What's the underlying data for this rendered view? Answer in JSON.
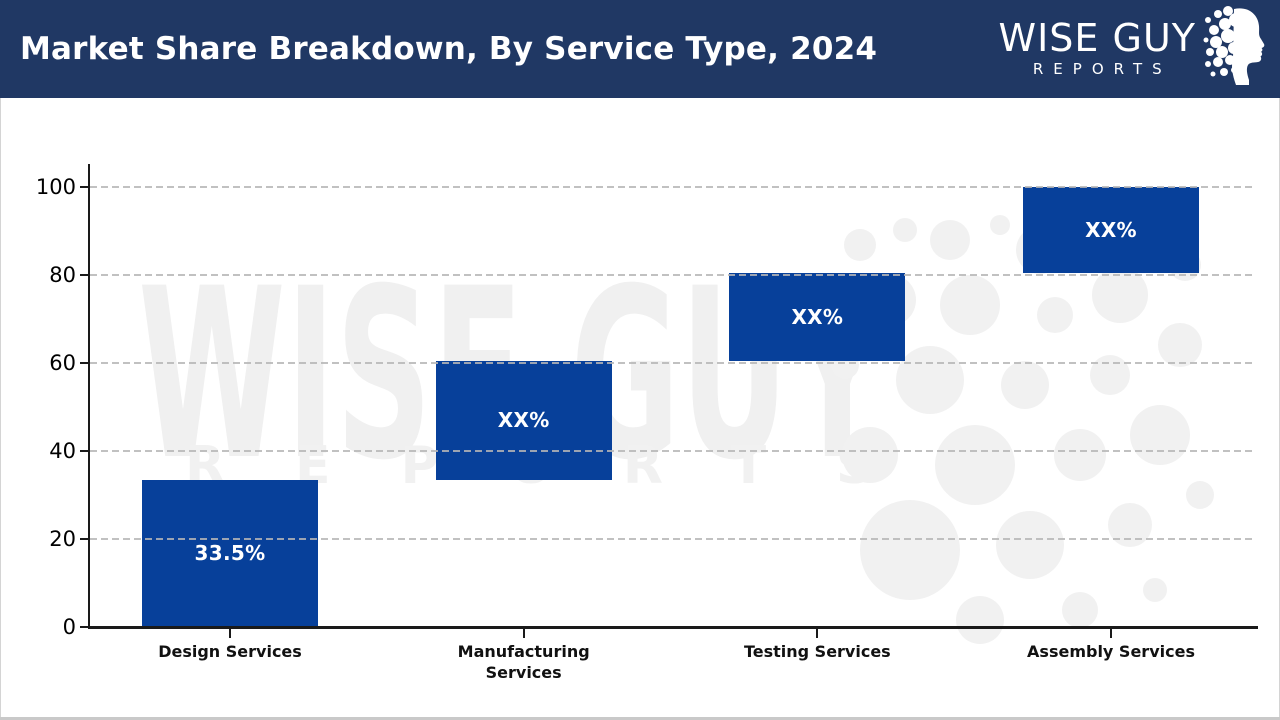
{
  "header": {
    "title": "Market Share Breakdown, By Service Type, 2024",
    "logo": {
      "line1": "WISE GUY",
      "line2": "REPORTS"
    }
  },
  "watermark": {
    "line1": "WISE GUY",
    "line2": "REPORTS"
  },
  "colors": {
    "header_bg": "#203864",
    "bar": "#07409a",
    "gridline": "#bcbcbc",
    "axis": "#1a1a1a",
    "watermark": "#f0f0f0",
    "title_text": "#ffffff",
    "bar_label_text": "#ffffff"
  },
  "chart_data": {
    "type": "bar",
    "subtype": "waterfall",
    "title": "Market Share Breakdown, By Service Type, 2024",
    "categories": [
      "Design Services",
      "Manufacturing Services",
      "Testing Services",
      "Assembly Services"
    ],
    "segments": [
      {
        "category": "Design Services",
        "start": 0,
        "end": 33.5,
        "label": "33.5%"
      },
      {
        "category": "Manufacturing Services",
        "start": 33.5,
        "end": 60.5,
        "label": "XX%"
      },
      {
        "category": "Testing Services",
        "start": 60.5,
        "end": 80.5,
        "label": "XX%"
      },
      {
        "category": "Assembly Services",
        "start": 80.5,
        "end": 100,
        "label": "XX%"
      }
    ],
    "xlabel": "",
    "ylabel": "",
    "ylim": [
      0,
      100
    ],
    "yticks": [
      0,
      20,
      40,
      60,
      80,
      100
    ],
    "grid": "horizontal-dashed",
    "legend": "none",
    "bar_color": "#07409a"
  }
}
